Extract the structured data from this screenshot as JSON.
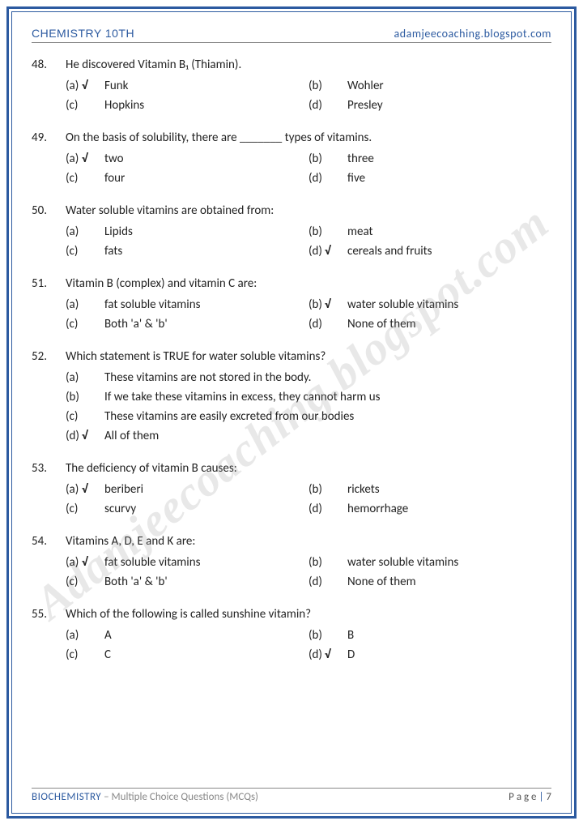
{
  "header": {
    "left": "CHEMISTRY 10TH",
    "right": "adamjeecoaching.blogspot.com"
  },
  "footer": {
    "subject": "BIOCHEMISTRY",
    "desc": " – Multiple Choice Questions (MCQs)",
    "page_label": "P a g e ",
    "page_sep": "| ",
    "page_num": "7"
  },
  "watermark": "Adamjeecoaching.blogspot.com",
  "questions": [
    {
      "n": "48.",
      "text": "He discovered Vitamin B₁ (Thiamin).",
      "layout": "2col",
      "options": [
        {
          "l": "(a)",
          "t": "Funk",
          "c": true
        },
        {
          "l": "(b)",
          "t": "Wohler"
        },
        {
          "l": "(c)",
          "t": "Hopkins"
        },
        {
          "l": "(d)",
          "t": "Presley"
        }
      ]
    },
    {
      "n": "49.",
      "text": "On the basis of solubility, there are _______ types of vitamins.",
      "layout": "2col",
      "options": [
        {
          "l": "(a)",
          "t": "two",
          "c": true
        },
        {
          "l": "(b)",
          "t": "three"
        },
        {
          "l": "(c)",
          "t": "four"
        },
        {
          "l": "(d)",
          "t": "five"
        }
      ]
    },
    {
      "n": "50.",
      "text": "Water soluble vitamins are obtained from:",
      "layout": "2col",
      "options": [
        {
          "l": "(a)",
          "t": "Lipids"
        },
        {
          "l": "(b)",
          "t": "meat"
        },
        {
          "l": "(c)",
          "t": "fats"
        },
        {
          "l": "(d)",
          "t": "cereals and fruits",
          "c": true
        }
      ]
    },
    {
      "n": "51.",
      "text": "Vitamin B (complex) and vitamin C are:",
      "layout": "2col",
      "options": [
        {
          "l": "(a)",
          "t": "fat soluble vitamins"
        },
        {
          "l": "(b)",
          "t": "water soluble vitamins",
          "c": true
        },
        {
          "l": "(c)",
          "t": "Both 'a' & 'b'"
        },
        {
          "l": "(d)",
          "t": "None of them"
        }
      ]
    },
    {
      "n": "52.",
      "text": "Which statement is TRUE for water soluble vitamins?",
      "layout": "1col",
      "options": [
        {
          "l": "(a)",
          "t": "These vitamins are not stored in the body."
        },
        {
          "l": "(b)",
          "t": "If we take these vitamins in excess, they cannot harm us"
        },
        {
          "l": "(c)",
          "t": "These vitamins are easily excreted from our bodies"
        },
        {
          "l": "(d)",
          "t": "All of them",
          "c": true
        }
      ]
    },
    {
      "n": "53.",
      "text": "The deficiency of vitamin B causes:",
      "layout": "2col",
      "options": [
        {
          "l": "(a)",
          "t": "beriberi",
          "c": true
        },
        {
          "l": "(b)",
          "t": "rickets"
        },
        {
          "l": "(c)",
          "t": "scurvy"
        },
        {
          "l": "(d)",
          "t": "hemorrhage"
        }
      ]
    },
    {
      "n": "54.",
      "text": "Vitamins A, D, E and K are:",
      "layout": "2col",
      "options": [
        {
          "l": "(a)",
          "t": "fat soluble vitamins",
          "c": true
        },
        {
          "l": "(b)",
          "t": "water soluble vitamins"
        },
        {
          "l": "(c)",
          "t": "Both 'a' & 'b'"
        },
        {
          "l": "(d)",
          "t": "None of them"
        }
      ]
    },
    {
      "n": "55.",
      "text": "Which of the following is called sunshine vitamin?",
      "layout": "2col",
      "options": [
        {
          "l": "(a)",
          "t": "A"
        },
        {
          "l": "(b)",
          "t": "B"
        },
        {
          "l": "(c)",
          "t": "C"
        },
        {
          "l": "(d)",
          "t": "D",
          "c": true
        }
      ]
    }
  ],
  "checkmark": "√"
}
